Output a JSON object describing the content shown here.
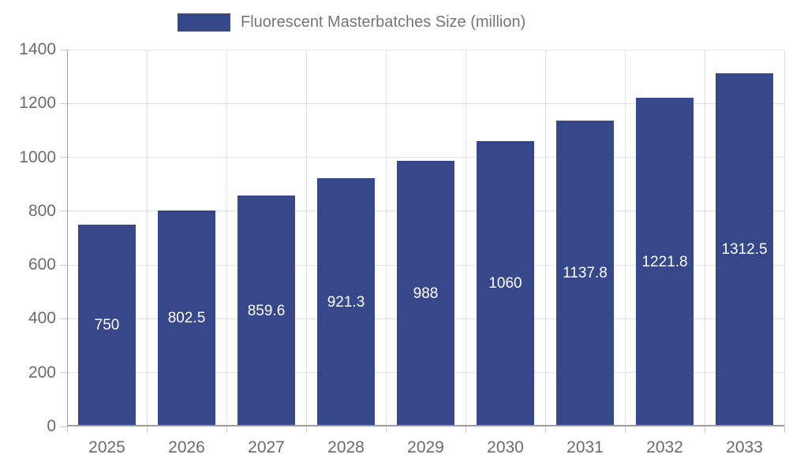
{
  "legend": {
    "label": "Fluorescent Masterbatches Size (million)"
  },
  "chart_data": {
    "type": "bar",
    "title": "Fluorescent Masterbatches Size (million)",
    "categories": [
      "2025",
      "2026",
      "2027",
      "2028",
      "2029",
      "2030",
      "2031",
      "2032",
      "2033"
    ],
    "values": [
      750,
      802.5,
      859.6,
      921.3,
      988,
      1060,
      1137.8,
      1221.8,
      1312.5
    ],
    "bar_value_labels": [
      "750",
      "802.5",
      "859.6",
      "921.3",
      "988",
      "1060",
      "1137.8",
      "1221.8",
      "1312.5"
    ],
    "y_tick_labels": [
      "0",
      "200",
      "400",
      "600",
      "800",
      "1000",
      "1200",
      "1400"
    ],
    "xlabel": "",
    "ylabel": "",
    "ylim": [
      0,
      1400
    ],
    "ytick_step": 200,
    "grid": true,
    "legend_position": "top",
    "bar_labels_position": "inside-center"
  },
  "colors": {
    "bar": "#36488A",
    "grid": "#e2e2e2",
    "axis": "#9e9e9e",
    "tick": "#c9c9c9",
    "axis_text": "#6b6b6b",
    "legend_text": "#757575",
    "bar_label": "#ffffff",
    "background": "#ffffff"
  }
}
